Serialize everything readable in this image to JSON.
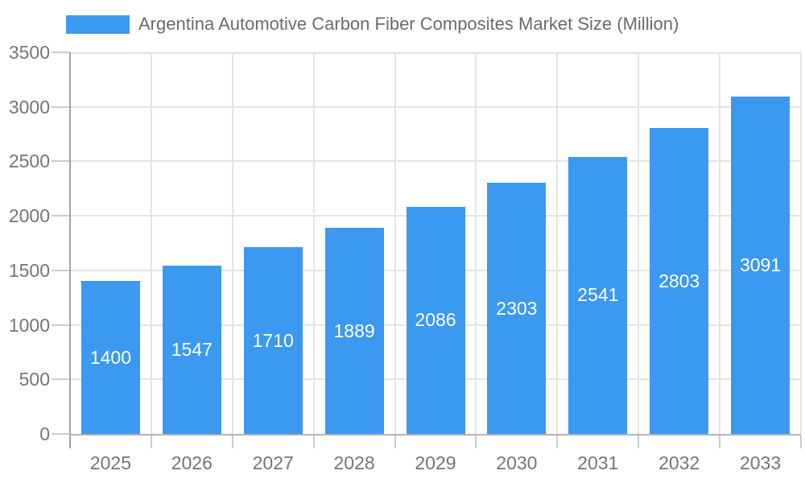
{
  "chart_data": {
    "type": "bar",
    "title": "Argentina Automotive Carbon Fiber Composites Market Size (Million)",
    "categories": [
      "2025",
      "2026",
      "2027",
      "2028",
      "2029",
      "2030",
      "2031",
      "2032",
      "2033"
    ],
    "values": [
      1400,
      1547,
      1710,
      1889,
      2086,
      2303,
      2541,
      2803,
      3091
    ],
    "xlabel": "",
    "ylabel": "",
    "ylim": [
      0,
      3500
    ],
    "ytick_step": 500,
    "yticks": [
      0,
      500,
      1000,
      1500,
      2000,
      2500,
      3000,
      3500
    ],
    "grid": true,
    "legend_position": "top-left",
    "bar_value_labels": "inside-center"
  },
  "colors": {
    "bar": "#3B99F0",
    "grid": "#e4e4e4",
    "axis_y": "#a3a3a3",
    "axis_x": "#b3b3b3",
    "tick": "#cccccc",
    "axis_text": "#757575",
    "title_text": "#6b6b6b",
    "bar_label": "#ffffff",
    "background": "#ffffff"
  }
}
